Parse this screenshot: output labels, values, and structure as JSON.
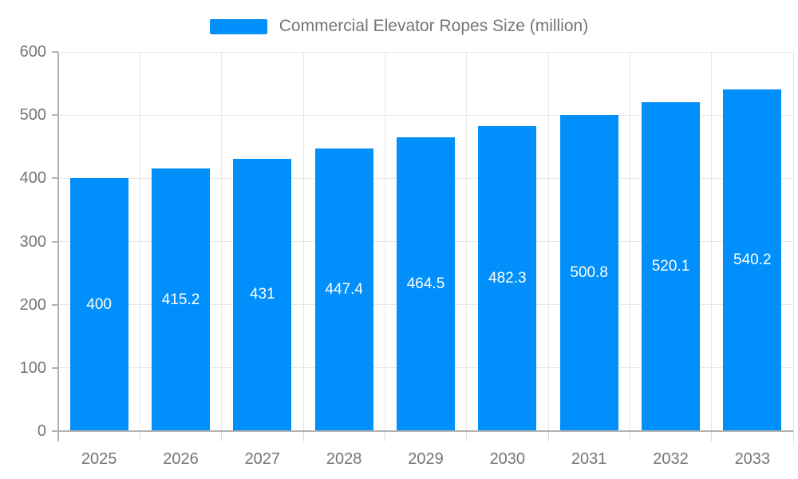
{
  "legend": {
    "label": "Commercial Elevator Ropes Size (million)"
  },
  "chart_data": {
    "type": "bar",
    "title": "Commercial Elevator Ropes Size (million)",
    "categories": [
      "2025",
      "2026",
      "2027",
      "2028",
      "2029",
      "2030",
      "2031",
      "2032",
      "2033"
    ],
    "values": [
      400,
      415.2,
      431,
      447.4,
      464.5,
      482.3,
      500.8,
      520.1,
      540.2
    ],
    "value_labels": [
      "400",
      "415.2",
      "431",
      "447.4",
      "464.5",
      "482.3",
      "500.8",
      "520.1",
      "540.2"
    ],
    "xlabel": "",
    "ylabel": "",
    "ylim": [
      0,
      600
    ],
    "yticks": [
      0,
      100,
      200,
      300,
      400,
      500,
      600
    ],
    "grid": "on",
    "legend_position": "top",
    "colors": {
      "bar": "#008FFB",
      "bar_label": "#ffffff",
      "grid": "#e7e7e7",
      "axis": "#b3b3b3",
      "tick_label": "#757575"
    }
  }
}
